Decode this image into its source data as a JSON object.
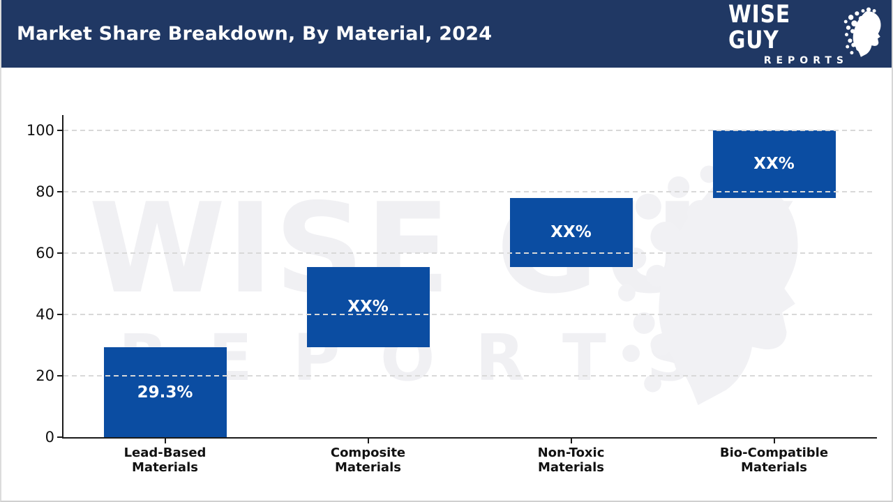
{
  "header": {
    "title": "Market Share Breakdown, By Material, 2024",
    "bg_color": "#203864",
    "brand": {
      "line1": "WISE GUY",
      "line2": "REPORTS"
    },
    "icons": {
      "logo": "wiseguy-head-profile-icon"
    }
  },
  "watermark": {
    "line1": "WISE GUY",
    "line2": "REPORTS"
  },
  "chart_data": {
    "type": "bar",
    "variant": "waterfall",
    "title": "Market Share Breakdown, By Material, 2024",
    "categories": [
      "Lead-Based Materials",
      "Composite Materials",
      "Non-Toxic Materials",
      "Bio-Compatible Materials"
    ],
    "segments": [
      {
        "category": "Lead-Based Materials",
        "start": 0,
        "end": 29.3,
        "label": "29.3%"
      },
      {
        "category": "Composite Materials",
        "start": 29.3,
        "end": 55.5,
        "label": "XX%"
      },
      {
        "category": "Non-Toxic Materials",
        "start": 55.5,
        "end": 78,
        "label": "XX%"
      },
      {
        "category": "Bio-Compatible Materials",
        "start": 78,
        "end": 100,
        "label": "XX%"
      }
    ],
    "xlabel": "",
    "ylabel": "",
    "ylim": [
      0,
      105
    ],
    "yticks": [
      0,
      20,
      40,
      60,
      80,
      100
    ],
    "grid": {
      "axis": "y",
      "style": "dashed",
      "color": "#d8d8d8",
      "drawn_over_bars": true
    },
    "legend": "none",
    "bar_color": "#0b4da2",
    "bar_label_color": "#ffffff",
    "axis_color": "#1a1a1a",
    "tick_label_color": "#111111"
  }
}
